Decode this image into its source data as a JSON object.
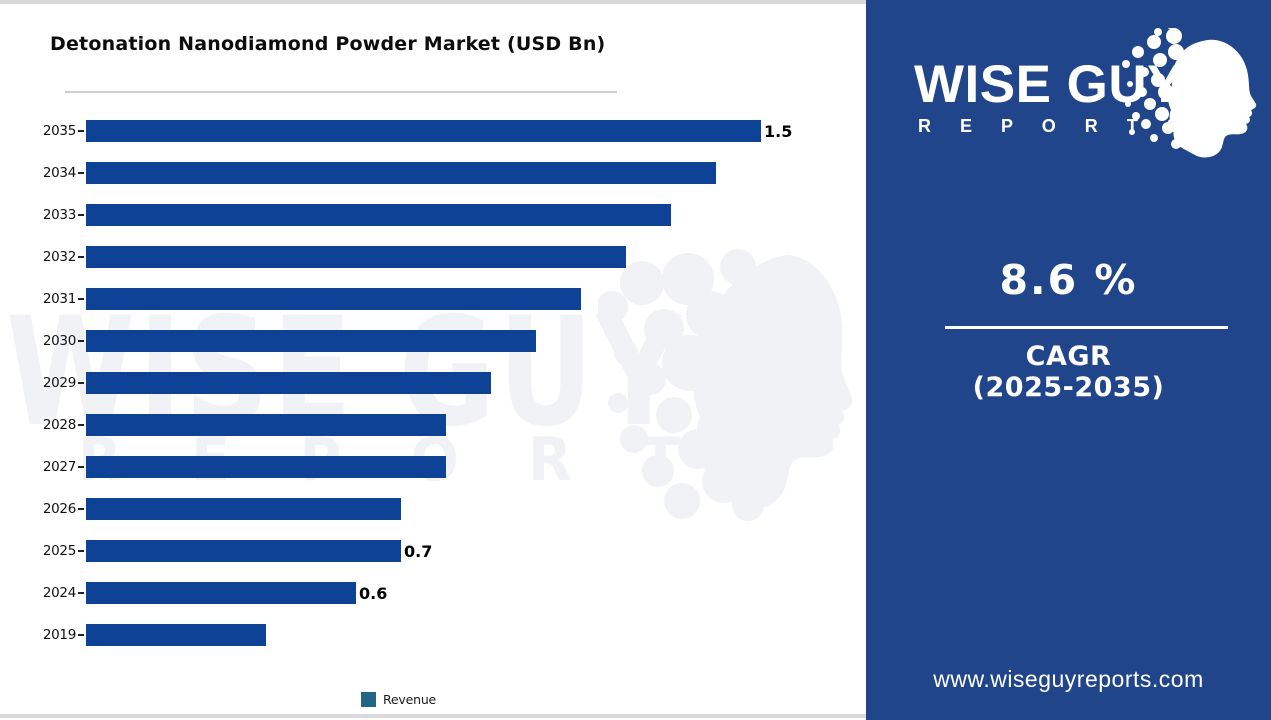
{
  "chart_data": {
    "type": "bar",
    "orientation": "horizontal",
    "title": "Detonation Nanodiamond Powder Market (USD Bn)",
    "categories": [
      "2035",
      "2034",
      "2033",
      "2032",
      "2031",
      "2030",
      "2029",
      "2028",
      "2027",
      "2026",
      "2025",
      "2024",
      "2019"
    ],
    "values": [
      1.5,
      1.4,
      1.3,
      1.2,
      1.1,
      1.0,
      0.9,
      0.8,
      0.8,
      0.7,
      0.7,
      0.6,
      0.4
    ],
    "bar_labels": [
      "1.5",
      "",
      "",
      "",
      "",
      "",
      "",
      "",
      "",
      "",
      "0.7",
      "0.6",
      ""
    ],
    "series_name": "Revenue",
    "xlabel": "",
    "ylabel": "",
    "xlim": [
      0,
      1.73
    ],
    "grid": false,
    "bar_color": "#0d4296",
    "legend": {
      "label": "Revenue",
      "swatch_color": "#226586",
      "position": "bottom-center"
    }
  },
  "watermark": {
    "line1": "WISE GUY",
    "line2": "R E P O R T S"
  },
  "panel": {
    "bg_color": "#21458b",
    "logo": {
      "line1": "WISE GUY",
      "line2": "R E P O R T S"
    },
    "cagr_value": "8.6 %",
    "cagr_label_line1": "CAGR",
    "cagr_label_line2": "(2025-2035)",
    "website": "www.wiseguyreports.com"
  }
}
